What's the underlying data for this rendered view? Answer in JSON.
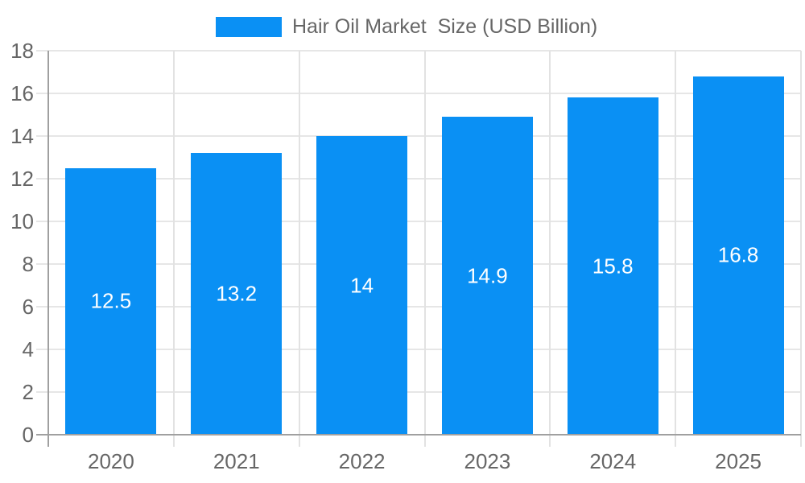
{
  "legend": {
    "label": "Hair Oil Market  Size (USD Billion)"
  },
  "chart_data": {
    "type": "bar",
    "title": "Hair Oil Market  Size (USD Billion)",
    "categories": [
      "2020",
      "2021",
      "2022",
      "2023",
      "2024",
      "2025"
    ],
    "values": [
      12.5,
      13.2,
      14,
      14.9,
      15.8,
      16.8
    ],
    "value_labels": [
      "12.5",
      "13.2",
      "14",
      "14.9",
      "15.8",
      "16.8"
    ],
    "series": [
      {
        "name": "Hair Oil Market  Size (USD Billion)",
        "values": [
          12.5,
          13.2,
          14,
          14.9,
          15.8,
          16.8
        ]
      }
    ],
    "xlabel": "",
    "ylabel": "",
    "ylim": [
      0,
      18
    ],
    "ytick_step": 2,
    "ytick_labels": [
      "0",
      "2",
      "4",
      "6",
      "8",
      "10",
      "12",
      "14",
      "16",
      "18"
    ],
    "grid": true,
    "legend_position": "top",
    "bar_label_position": "center-inside"
  },
  "colors": {
    "bar": "#0A90F4",
    "bar_value_label": "#ffffff",
    "gridline": "#e6e6e6",
    "axis_line": "#a0a0a0",
    "tick_text": "#666666",
    "legend_text": "#666666",
    "background": "#ffffff"
  }
}
